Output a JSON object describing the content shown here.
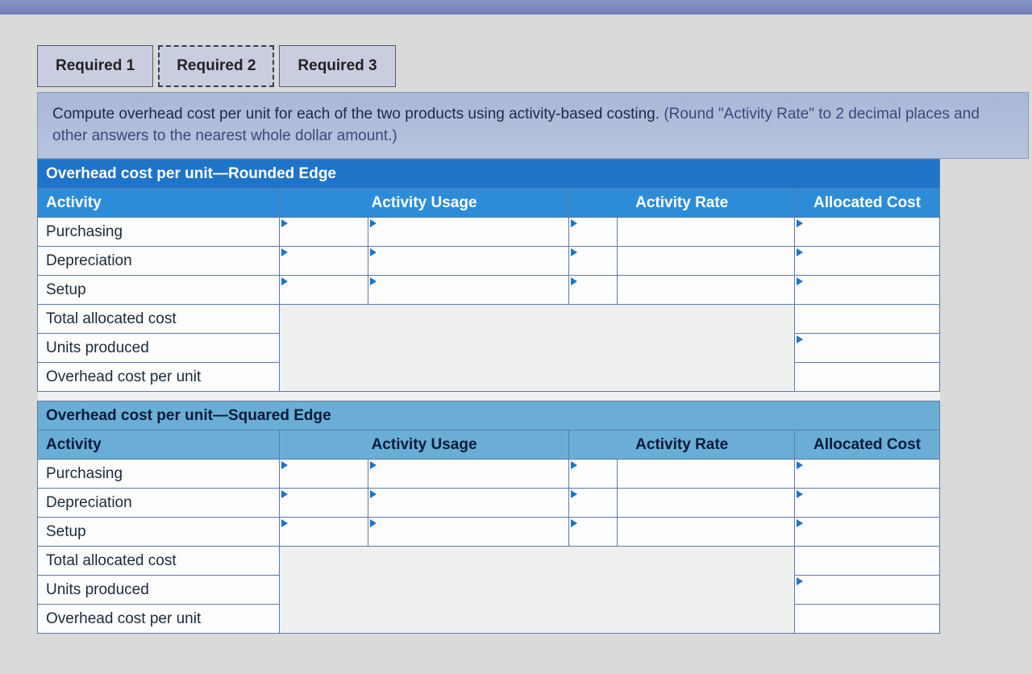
{
  "tabs": {
    "items": [
      {
        "label": "Required 1"
      },
      {
        "label": "Required 2"
      },
      {
        "label": "Required 3"
      }
    ],
    "activeIndex": 1
  },
  "instruction": {
    "main": "Compute overhead cost per unit for each of the two products using activity-based costing. ",
    "note": "(Round \"Activity Rate\" to 2 decimal places and other answers to the nearest whole dollar amount.)"
  },
  "table1": {
    "title": "Overhead cost per unit—Rounded Edge",
    "headers": {
      "activity": "Activity",
      "usage": "Activity Usage",
      "rate": "Activity Rate",
      "alloc": "Allocated Cost"
    },
    "rows": [
      {
        "label": "Purchasing"
      },
      {
        "label": "Depreciation"
      },
      {
        "label": "Setup"
      },
      {
        "label": "Total allocated cost"
      },
      {
        "label": "Units produced"
      },
      {
        "label": "Overhead cost per unit"
      }
    ]
  },
  "table2": {
    "title": "Overhead cost per unit—Squared Edge",
    "headers": {
      "activity": "Activity",
      "usage": "Activity Usage",
      "rate": "Activity Rate",
      "alloc": "Allocated Cost"
    },
    "rows": [
      {
        "label": "Purchasing"
      },
      {
        "label": "Depreciation"
      },
      {
        "label": "Setup"
      },
      {
        "label": "Total allocated cost"
      },
      {
        "label": "Units produced"
      },
      {
        "label": "Overhead cost per unit"
      }
    ]
  },
  "colors": {
    "section1_header_bg": "#1e74c8",
    "section1_colhdr_bg": "#2d8cd8",
    "section2_header_bg": "#6aaed6",
    "border": "#5a7aaa",
    "page_bg": "#d8dbd8"
  }
}
